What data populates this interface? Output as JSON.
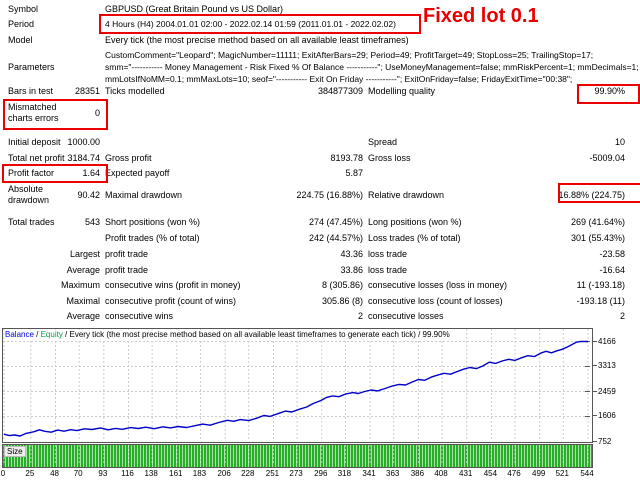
{
  "report": {
    "symbol_label": "Symbol",
    "symbol_value": "GBPUSD (Great Britain Pound vs US Dollar)",
    "period_label": "Period",
    "period_value": "4 Hours (H4) 2004.01.01 02:00 - 2022.02.14 01:59 (2011.01.01 - 2022.02.02)",
    "annotation": "Fixed lot 0.1",
    "model_label": "Model",
    "model_value": "Every tick (the most precise method based on all available least timeframes)",
    "parameters_label": "Parameters",
    "parameters_line1": "CustomComment=\"Leopard\"; MagicNumber=11111; ExitAfterBars=29; Period=49; ProfitTarget=49; StopLoss=25; TrailingStop=17;",
    "parameters_line2": "smm=\"----------- Money Management - Risk Fixed % Of Balance -----------\"; UseMoneyManagement=false; mmRiskPercent=1; mmDecimals=1;",
    "parameters_line3": "mmLotsIfNoMM=0.1; mmMaxLots=10; seof=\"----------- Exit On Friday -----------\"; ExitOnFriday=false; FridayExitTime=\"00:38\";"
  },
  "stats": {
    "rows": [
      {
        "l1": "Bars in test",
        "v1": "28351",
        "l2": "Ticks modelled",
        "v2": "384877309",
        "l3": "Modelling quality",
        "v3": "99.90%"
      },
      {
        "l1": "Mismatched charts errors",
        "v1": "0",
        "wrap1": true
      },
      {
        "l1": "Initial deposit",
        "v1": "1000.00",
        "l3": "Spread",
        "v3": "10"
      },
      {
        "l1": "Total net profit",
        "v1": "3184.74",
        "l2": "Gross profit",
        "v2": "8193.78",
        "l3": "Gross loss",
        "v3": "-5009.04"
      },
      {
        "l1": "Profit factor",
        "v1": "1.64",
        "l2": "Expected payoff",
        "v2": "5.87"
      },
      {
        "l1": "Absolute drawdown",
        "v1": "90.42",
        "l2": "Maximal drawdown",
        "v2": "224.75 (16.88%)",
        "l3": "Relative drawdown",
        "v3": "16.88% (224.75)",
        "wrap1": true
      },
      {
        "l1": "Total trades",
        "v1": "543",
        "l2": "Short positions (won %)",
        "v2": "274 (47.45%)",
        "l3": "Long positions (won %)",
        "v3": "269 (41.64%)"
      },
      {
        "l2": "Profit trades (% of total)",
        "v2": "242 (44.57%)",
        "l3": "Loss trades (% of total)",
        "v3": "301 (55.43%)"
      },
      {
        "r1": "Largest",
        "l2": "profit trade",
        "v2": "43.36",
        "l3": "loss trade",
        "v3": "-23.58"
      },
      {
        "r1": "Average",
        "l2": "profit trade",
        "v2": "33.86",
        "l3": "loss trade",
        "v3": "-16.64"
      },
      {
        "r1": "Maximum",
        "l2": "consecutive wins (profit in money)",
        "v2": "8 (305.86)",
        "l3": "consecutive losses (loss in money)",
        "v3": "11 (-193.18)"
      },
      {
        "r1": "Maximal",
        "l2": "consecutive profit (count of wins)",
        "v2": "305.86 (8)",
        "l3": "consecutive loss (count of losses)",
        "v3": "-193.18 (11)"
      },
      {
        "r1": "Average",
        "l2": "consecutive wins",
        "v2": "2",
        "l3": "consecutive losses",
        "v3": "2"
      }
    ]
  },
  "chart_header": {
    "balance": "Balance",
    "sep1": " / ",
    "equity": "Equity",
    "sep2": " / ",
    "rest": "Every tick (the most precise method based on all available least timeframes to generate each tick) / 99.90%"
  },
  "chart_data": {
    "type": "line",
    "legend": [
      "Balance",
      "Equity"
    ],
    "legend_colors": [
      "#0000ee",
      "#00a050"
    ],
    "x_range": [
      0,
      544
    ],
    "y_range_visible": [
      752,
      4608
    ],
    "x_ticks": [
      0,
      25,
      48,
      70,
      93,
      116,
      138,
      161,
      183,
      206,
      228,
      251,
      273,
      296,
      318,
      341,
      363,
      386,
      408,
      431,
      454,
      476,
      499,
      521,
      544
    ],
    "y_ticks": [
      752,
      1606,
      2459,
      3313,
      4166
    ],
    "grid": "dashed",
    "series": [
      {
        "name": "Balance",
        "color": "#0000c8",
        "points": [
          [
            0,
            1000
          ],
          [
            5,
            955
          ],
          [
            10,
            975
          ],
          [
            15,
            940
          ],
          [
            20,
            1020
          ],
          [
            28,
            1085
          ],
          [
            33,
            1150
          ],
          [
            38,
            1100
          ],
          [
            44,
            1070
          ],
          [
            50,
            1140
          ],
          [
            56,
            1105
          ],
          [
            62,
            1155
          ],
          [
            68,
            1125
          ],
          [
            75,
            1185
          ],
          [
            82,
            1160
          ],
          [
            90,
            1215
          ],
          [
            97,
            1150
          ],
          [
            104,
            1200
          ],
          [
            110,
            1170
          ],
          [
            118,
            1225
          ],
          [
            125,
            1195
          ],
          [
            132,
            1240
          ],
          [
            140,
            1190
          ],
          [
            148,
            1255
          ],
          [
            155,
            1215
          ],
          [
            162,
            1265
          ],
          [
            170,
            1230
          ],
          [
            178,
            1290
          ],
          [
            185,
            1345
          ],
          [
            192,
            1310
          ],
          [
            200,
            1400
          ],
          [
            208,
            1475
          ],
          [
            214,
            1440
          ],
          [
            220,
            1500
          ],
          [
            228,
            1465
          ],
          [
            235,
            1545
          ],
          [
            242,
            1640
          ],
          [
            248,
            1610
          ],
          [
            255,
            1700
          ],
          [
            262,
            1790
          ],
          [
            268,
            1760
          ],
          [
            275,
            1850
          ],
          [
            282,
            1930
          ],
          [
            288,
            2050
          ],
          [
            295,
            2150
          ],
          [
            300,
            2250
          ],
          [
            306,
            2310
          ],
          [
            312,
            2280
          ],
          [
            318,
            2370
          ],
          [
            325,
            2420
          ],
          [
            330,
            2390
          ],
          [
            336,
            2460
          ],
          [
            342,
            2510
          ],
          [
            348,
            2480
          ],
          [
            355,
            2560
          ],
          [
            362,
            2650
          ],
          [
            368,
            2700
          ],
          [
            374,
            2680
          ],
          [
            380,
            2780
          ],
          [
            386,
            2870
          ],
          [
            392,
            2840
          ],
          [
            398,
            2950
          ],
          [
            404,
            3020
          ],
          [
            410,
            3080
          ],
          [
            416,
            3050
          ],
          [
            422,
            3140
          ],
          [
            428,
            3220
          ],
          [
            434,
            3280
          ],
          [
            440,
            3240
          ],
          [
            446,
            3330
          ],
          [
            452,
            3460
          ],
          [
            458,
            3420
          ],
          [
            464,
            3500
          ],
          [
            470,
            3560
          ],
          [
            476,
            3520
          ],
          [
            482,
            3610
          ],
          [
            488,
            3680
          ],
          [
            494,
            3650
          ],
          [
            500,
            3770
          ],
          [
            505,
            3830
          ],
          [
            510,
            3780
          ],
          [
            515,
            3850
          ],
          [
            520,
            3900
          ],
          [
            525,
            3980
          ],
          [
            529,
            4060
          ],
          [
            533,
            4140
          ],
          [
            537,
            4170
          ],
          [
            540,
            4166
          ],
          [
            544,
            4166
          ]
        ]
      }
    ],
    "lot_panel": {
      "label": "Size",
      "bar_color": "#28ad28",
      "bars_constant_height": true
    }
  }
}
